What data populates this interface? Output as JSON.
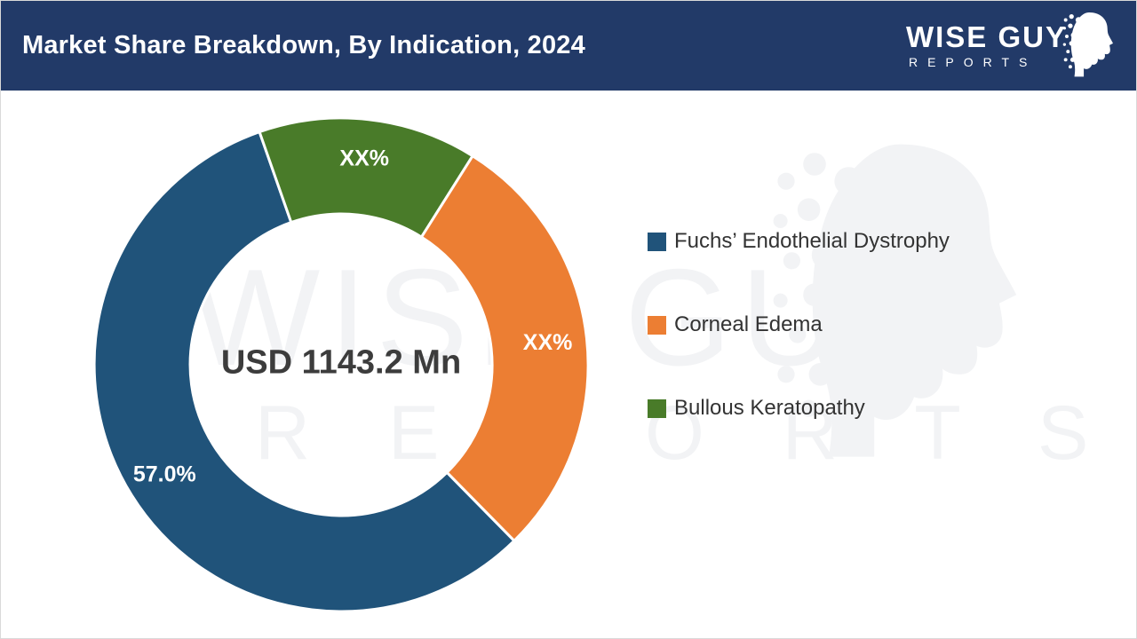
{
  "header": {
    "title": "Market Share Breakdown, By Indication, 2024",
    "background_color": "#223A68",
    "logo": {
      "line1": "WISE GUY",
      "line2": "REPORTS"
    }
  },
  "watermark": {
    "line1": "WISE GUY",
    "line2": "R E P O R T S"
  },
  "chart_data": {
    "type": "donut",
    "title": "Market Share Breakdown, By Indication, 2024",
    "center_label": "USD 1143.2 Mn",
    "start_angle_deg": 135.5,
    "direction": "clockwise",
    "segments": [
      {
        "id": "fuchs-endothelial-dystrophy",
        "label": "Fuchs’ Endothelial Dystrophy",
        "value_pct": 57.0,
        "display_pct": "57.0%",
        "color": "#20537A"
      },
      {
        "id": "bullous-keratopathy",
        "label": "Bullous Keratopathy",
        "value_pct": 14.3,
        "display_pct": "XX%",
        "color": "#497B29"
      },
      {
        "id": "corneal-edema",
        "label": "Corneal Edema",
        "value_pct": 28.7,
        "display_pct": "XX%",
        "color": "#EC7E33"
      }
    ],
    "legend": {
      "position": "right",
      "items": [
        {
          "label": "Fuchs’ Endothelial Dystrophy",
          "color": "#20537A"
        },
        {
          "label": "Corneal Edema",
          "color": "#EC7E33"
        },
        {
          "label": "Bullous Keratopathy",
          "color": "#497B29"
        }
      ]
    },
    "label_text_color": "#FFFFFF",
    "separator_color": "#FFFFFF"
  }
}
